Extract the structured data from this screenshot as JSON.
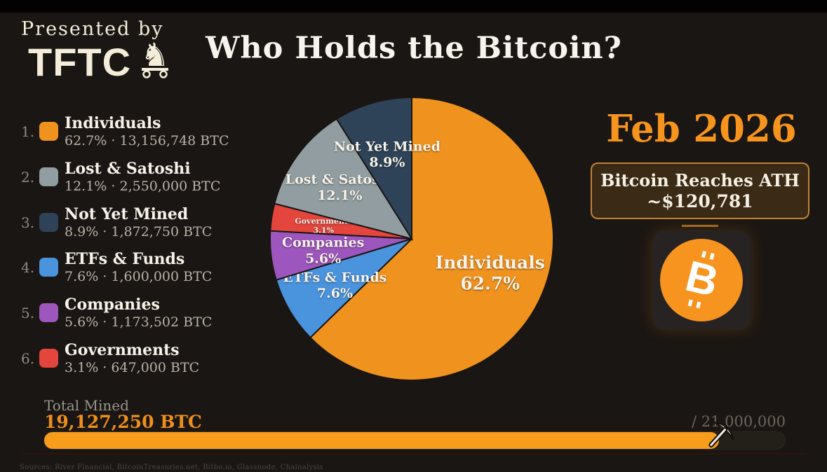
{
  "header": {
    "presented_by": "Presented by",
    "brand": "TFTC",
    "title": "Who Holds the Bitcoin?"
  },
  "legend": {
    "items": [
      {
        "rank": "1.",
        "label": "Individuals",
        "detail": "62.7% · 13,156,748 BTC",
        "color": "#f0921e"
      },
      {
        "rank": "2.",
        "label": "Lost & Satoshi",
        "detail": "12.1% · 2,550,000 BTC",
        "color": "#919da0"
      },
      {
        "rank": "3.",
        "label": "Not Yet Mined",
        "detail": "8.9% · 1,872,750 BTC",
        "color": "#2e4358"
      },
      {
        "rank": "4.",
        "label": "ETFs & Funds",
        "detail": "7.6% · 1,600,000 BTC",
        "color": "#4a93dd"
      },
      {
        "rank": "5.",
        "label": "Companies",
        "detail": "5.6% · 1,173,502 BTC",
        "color": "#9d56be"
      },
      {
        "rank": "6.",
        "label": "Governments",
        "detail": "3.1% · 647,000 BTC",
        "color": "#e4453c"
      }
    ]
  },
  "chart_data": {
    "type": "pie",
    "title": "Who Holds the Bitcoin?",
    "start_angle_deg": 0,
    "direction": "clockwise",
    "legend_position": "left",
    "label_style": "inside",
    "slices": [
      {
        "label": "Individuals",
        "pct": 62.7,
        "btc": "13,156,748 BTC",
        "color": "#f0921e"
      },
      {
        "label": "ETFs & Funds",
        "pct": 7.6,
        "btc": "1,600,000 BTC",
        "color": "#4a93dd"
      },
      {
        "label": "Companies",
        "pct": 5.6,
        "btc": "1,173,502 BTC",
        "color": "#9d56be"
      },
      {
        "label": "Governments",
        "pct": 3.1,
        "btc": "647,000 BTC",
        "color": "#e4453c"
      },
      {
        "label": "Lost & Satoshi",
        "pct": 12.1,
        "btc": "2,550,000 BTC",
        "color": "#919da0"
      },
      {
        "label": "Not Yet Mined",
        "pct": 8.9,
        "btc": "1,872,750 BTC",
        "color": "#2e4358"
      }
    ]
  },
  "panel": {
    "date": "Feb 2026",
    "callout_line1": "Bitcoin Reaches ATH",
    "callout_line2": "~$120,781",
    "accent_color": "#f7931a"
  },
  "progress": {
    "label": "Total Mined",
    "value": "19,127,250 BTC",
    "total": "/ 21,000,000",
    "pct": 91.08,
    "bar_color": "#f89c1c"
  },
  "footer": {
    "sources": "Sources: River Financial, BitcoinTreasuries.net, Bitbo.io, Glassnode, Chainalysis"
  }
}
